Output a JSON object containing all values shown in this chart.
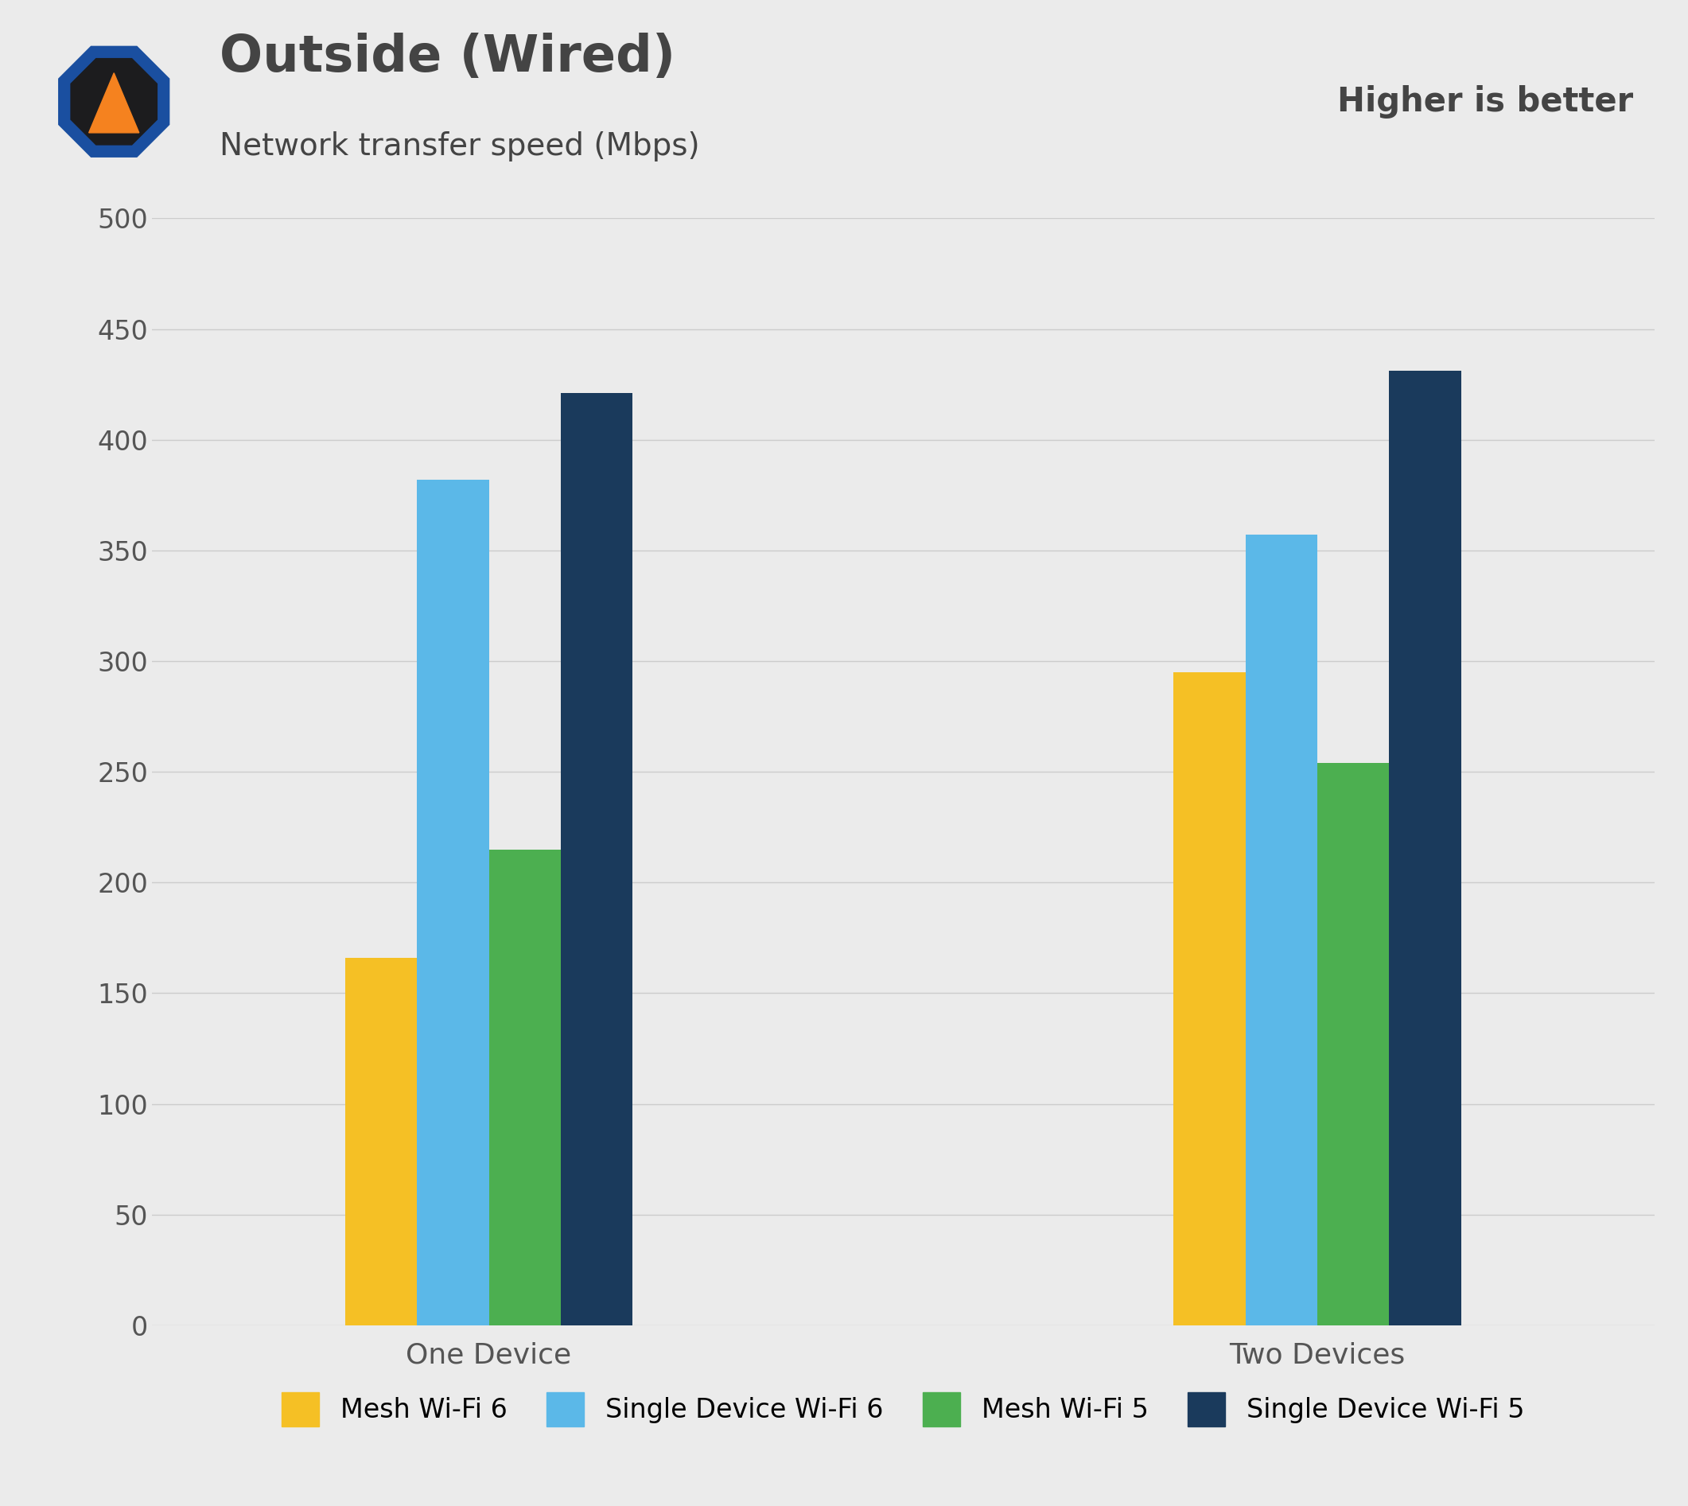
{
  "title": "Outside (Wired)",
  "subtitle": "Network transfer speed (Mbps)",
  "higher_is_better": "Higher is better",
  "categories": [
    "One Device",
    "Two Devices"
  ],
  "series": [
    {
      "label": "Mesh Wi-Fi 6",
      "color": "#F5C025",
      "values": [
        166,
        295
      ]
    },
    {
      "label": "Single Device Wi-Fi 6",
      "color": "#5BB8E8",
      "values": [
        382,
        357
      ]
    },
    {
      "label": "Mesh Wi-Fi 5",
      "color": "#4CAF50",
      "values": [
        215,
        254
      ]
    },
    {
      "label": "Single Device Wi-Fi 5",
      "color": "#1A3A5C",
      "values": [
        421,
        431
      ]
    }
  ],
  "ylim": [
    0,
    500
  ],
  "yticks": [
    0,
    50,
    100,
    150,
    200,
    250,
    300,
    350,
    400,
    450,
    500
  ],
  "background_color": "#EBEBEB",
  "header_color": "#FFFFFF",
  "title_color": "#444444",
  "subtitle_color": "#444444",
  "axis_label_color": "#555555",
  "grid_color": "#CCCCCC",
  "bar_width": 0.13,
  "title_fontsize": 46,
  "subtitle_fontsize": 28,
  "tick_fontsize": 24,
  "legend_fontsize": 24,
  "higher_is_better_fontsize": 30,
  "category_fontsize": 26
}
